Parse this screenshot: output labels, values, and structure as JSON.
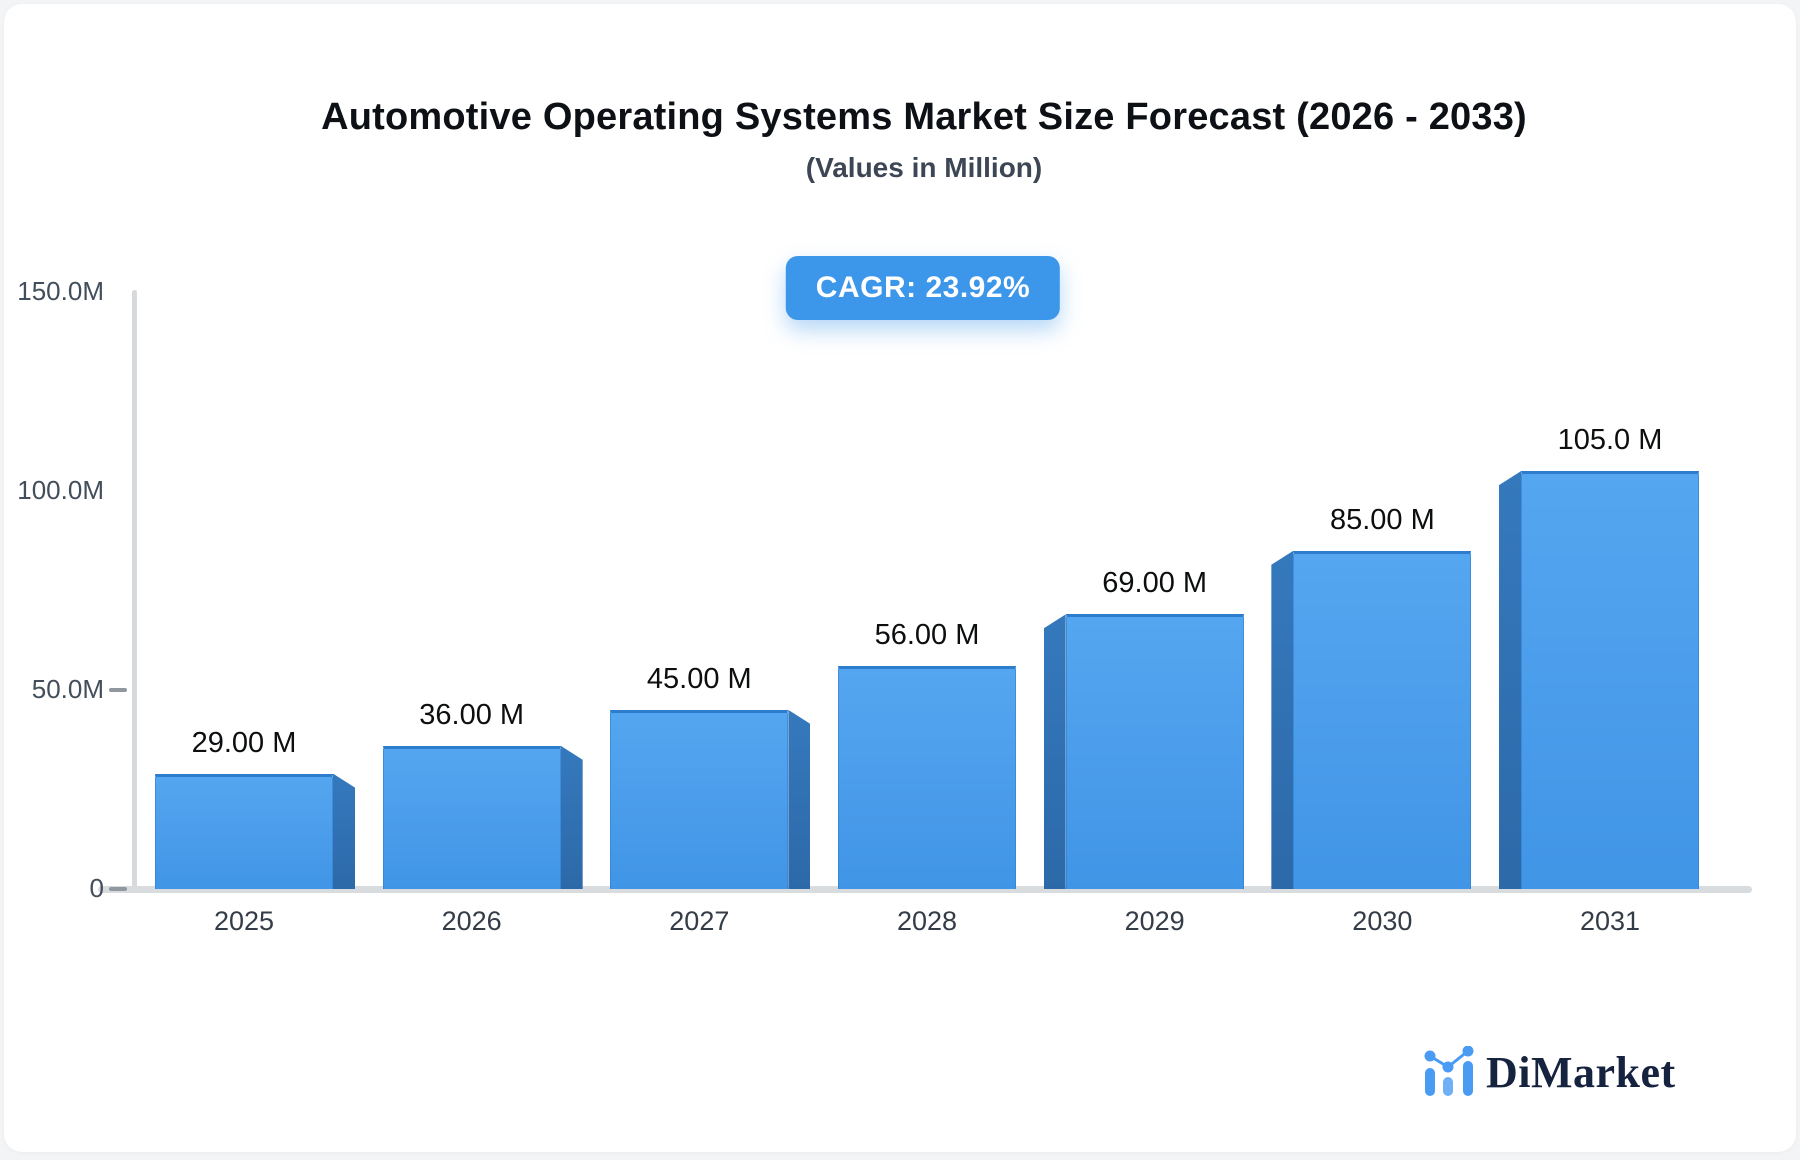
{
  "chart_data": {
    "type": "bar",
    "title": "Automotive Operating Systems Market Size Forecast (2026 - 2033)",
    "subtitle": "(Values in Million)",
    "cagr_label": "CAGR: 23.92%",
    "categories": [
      "2025",
      "2026",
      "2027",
      "2028",
      "2029",
      "2030",
      "2031"
    ],
    "values": [
      29,
      36,
      45,
      56,
      69,
      85,
      105
    ],
    "value_labels": [
      "29.00 M",
      "36.00 M",
      "45.00 M",
      "56.00 M",
      "69.00 M",
      "85.00 M",
      "105.0 M"
    ],
    "unit": "Million",
    "xlabel": "",
    "ylabel": "",
    "ylim": [
      0,
      150
    ],
    "grid": "off",
    "legend": "none",
    "y_ticks": [
      {
        "value": 0,
        "label": "0",
        "dash": true
      },
      {
        "value": 50,
        "label": "50.0M",
        "dash": true
      },
      {
        "value": 100,
        "label": "100.0M",
        "dash": false
      },
      {
        "value": 150,
        "label": "150.0M",
        "dash": false
      }
    ],
    "colors": {
      "bar_front_top": "#55a6f0",
      "bar_front_bottom": "#4195e6",
      "bar_side": "#2f70b5",
      "bar_top_edge": "#2d7ccd",
      "axis": "#d7dadd",
      "badge": "#3c96e9"
    }
  },
  "branding": {
    "logo_text": "DiMarket",
    "logo_text_color": "#16233f",
    "logo_icon_color": "#4a9bf3",
    "logo_icon": "mini-bar-line-chart-icon"
  }
}
